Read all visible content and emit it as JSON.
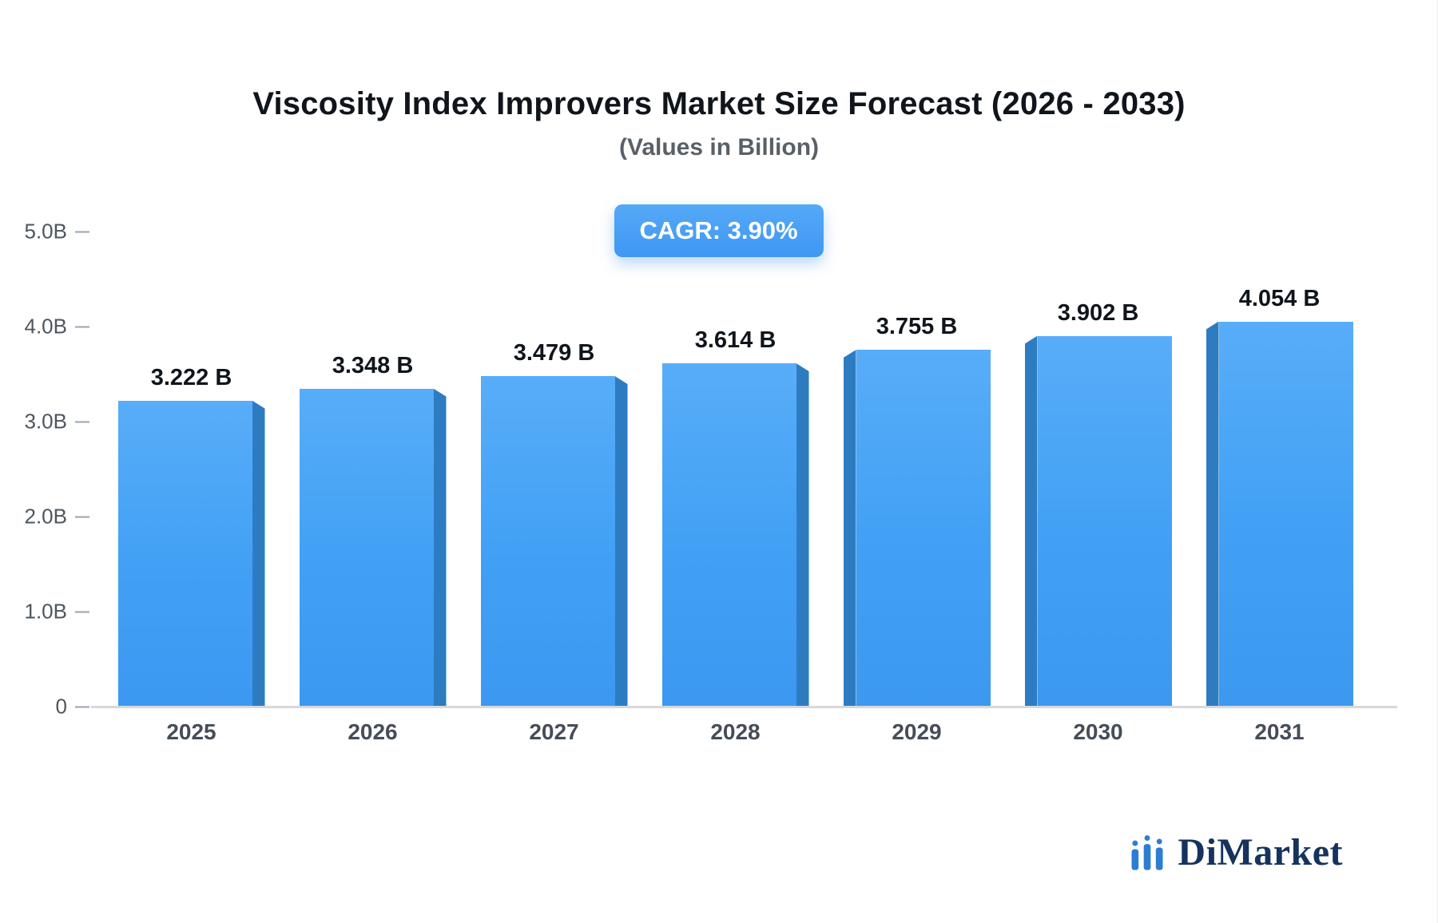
{
  "header": {
    "title": "Viscosity Index Improvers Market Size Forecast (2026 - 2033)",
    "subtitle": "(Values in Billion)"
  },
  "badge": {
    "label": "CAGR: 3.90%",
    "bg_color": "#4BA2F6",
    "text_color": "#FFFFFF"
  },
  "chart_data": {
    "type": "bar",
    "title": "Viscosity Index Improvers Market Size Forecast (2026 - 2033)",
    "subtitle": "(Values in Billion)",
    "categories": [
      "2025",
      "2026",
      "2027",
      "2028",
      "2029",
      "2030",
      "2031"
    ],
    "values": [
      3.222,
      3.348,
      3.479,
      3.614,
      3.755,
      3.902,
      4.054
    ],
    "value_labels": [
      "3.222 B",
      "3.348 B",
      "3.479 B",
      "3.614 B",
      "3.755 B",
      "3.902 B",
      "4.054 B"
    ],
    "xlabel": "",
    "ylabel": "",
    "ylim": [
      0,
      5
    ],
    "yticks": [
      0,
      1,
      2,
      3,
      4,
      5
    ],
    "ytick_labels": [
      "0",
      "1.0B",
      "2.0B",
      "3.0B",
      "4.0B",
      "5.0B"
    ],
    "grid": false,
    "legend": false,
    "bar_color": "#41A0F5",
    "bar_side_color": "#2D7CC2"
  },
  "logo": {
    "text": "DiMarket",
    "icon": "bar-chart-logo-icon",
    "text_color": "#16335E",
    "icon_color": "#2D7DD2"
  }
}
